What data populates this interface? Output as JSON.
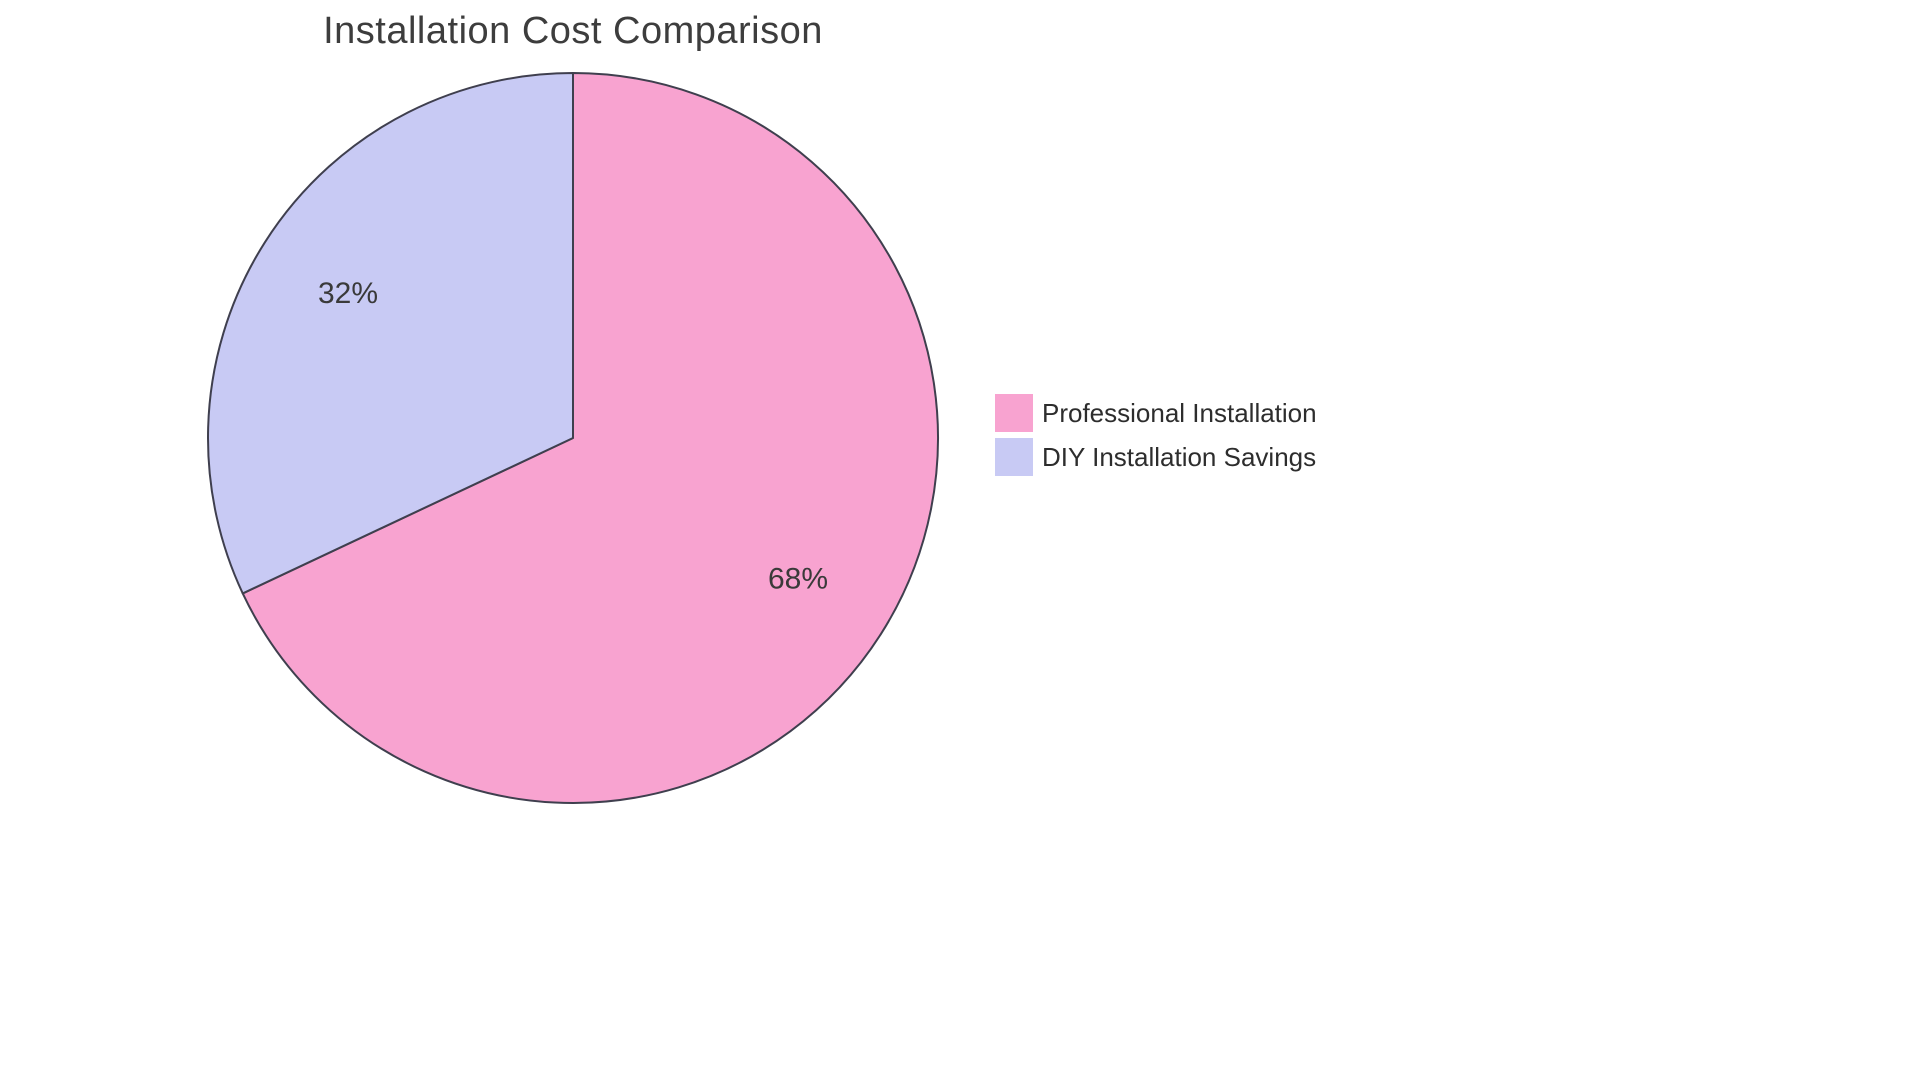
{
  "chart_data": {
    "type": "pie",
    "title": "Installation Cost Comparison",
    "labels": [
      "Professional Installation",
      "DIY Installation Savings"
    ],
    "values": [
      68,
      32
    ],
    "display_labels": [
      "68%",
      "32%"
    ],
    "colors": [
      "#F8A3D0",
      "#C8CAF4"
    ],
    "stroke_color": "#3F3F4E",
    "start_angle_deg": 0,
    "direction": "clockwise",
    "label_radius_ratio": 0.73,
    "legend_position": "right"
  },
  "legend": {
    "items": [
      {
        "label": "Professional Installation",
        "color": "#F8A3D0"
      },
      {
        "label": "DIY Installation Savings",
        "color": "#C8CAF4"
      }
    ]
  }
}
